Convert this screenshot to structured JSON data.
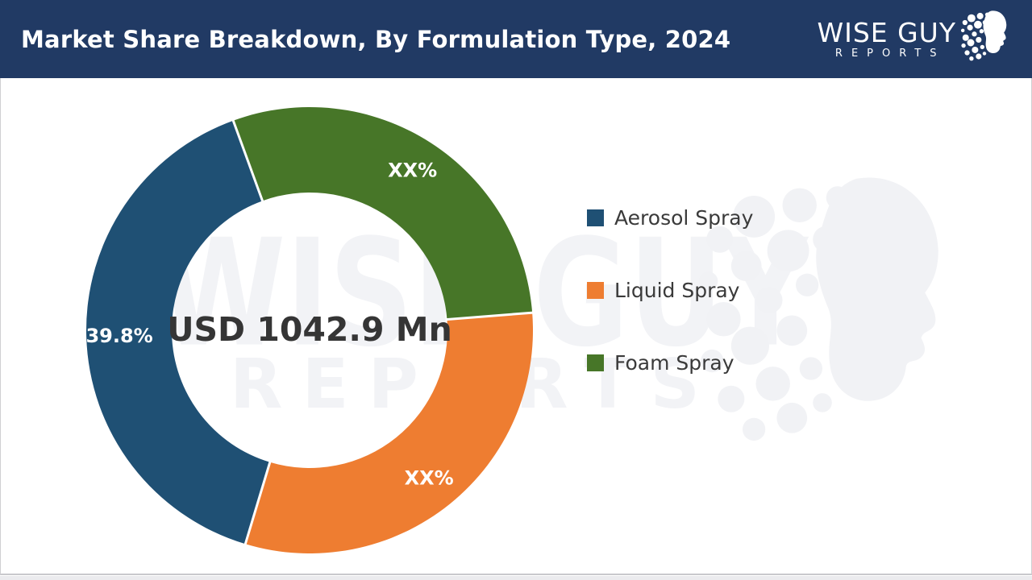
{
  "header": {
    "title": "Market Share Breakdown, By Formulation Type, 2024",
    "bg_color": "#213A64",
    "logo": {
      "line1": "WISE GUY",
      "line2": "REPORTS"
    }
  },
  "watermark": {
    "line1": "WISE GUY",
    "line2": "REPORTS"
  },
  "chart_data": {
    "type": "pie",
    "subtype": "donut",
    "title": "Market Share Breakdown, By Formulation Type, 2024",
    "center_label": "USD 1042.9 Mn",
    "start_angle_deg": -20,
    "legend_position": "right",
    "slices_draw_order": [
      {
        "label": "Foam Spray",
        "color": "#477628",
        "pct_label": "XX%",
        "pct_value_est": 29.3
      },
      {
        "label": "Liquid Spray",
        "color": "#EE7D31",
        "pct_label": "XX%",
        "pct_value_est": 30.9
      },
      {
        "label": "Aerosol Spray",
        "color": "#1F5074",
        "pct_label": "39.8%",
        "pct_value_est": 39.8
      }
    ],
    "legend": [
      {
        "label": "Aerosol Spray",
        "color": "#1F5074"
      },
      {
        "label": "Liquid Spray",
        "color": "#EE7D31"
      },
      {
        "label": "Foam Spray",
        "color": "#477628"
      }
    ]
  }
}
